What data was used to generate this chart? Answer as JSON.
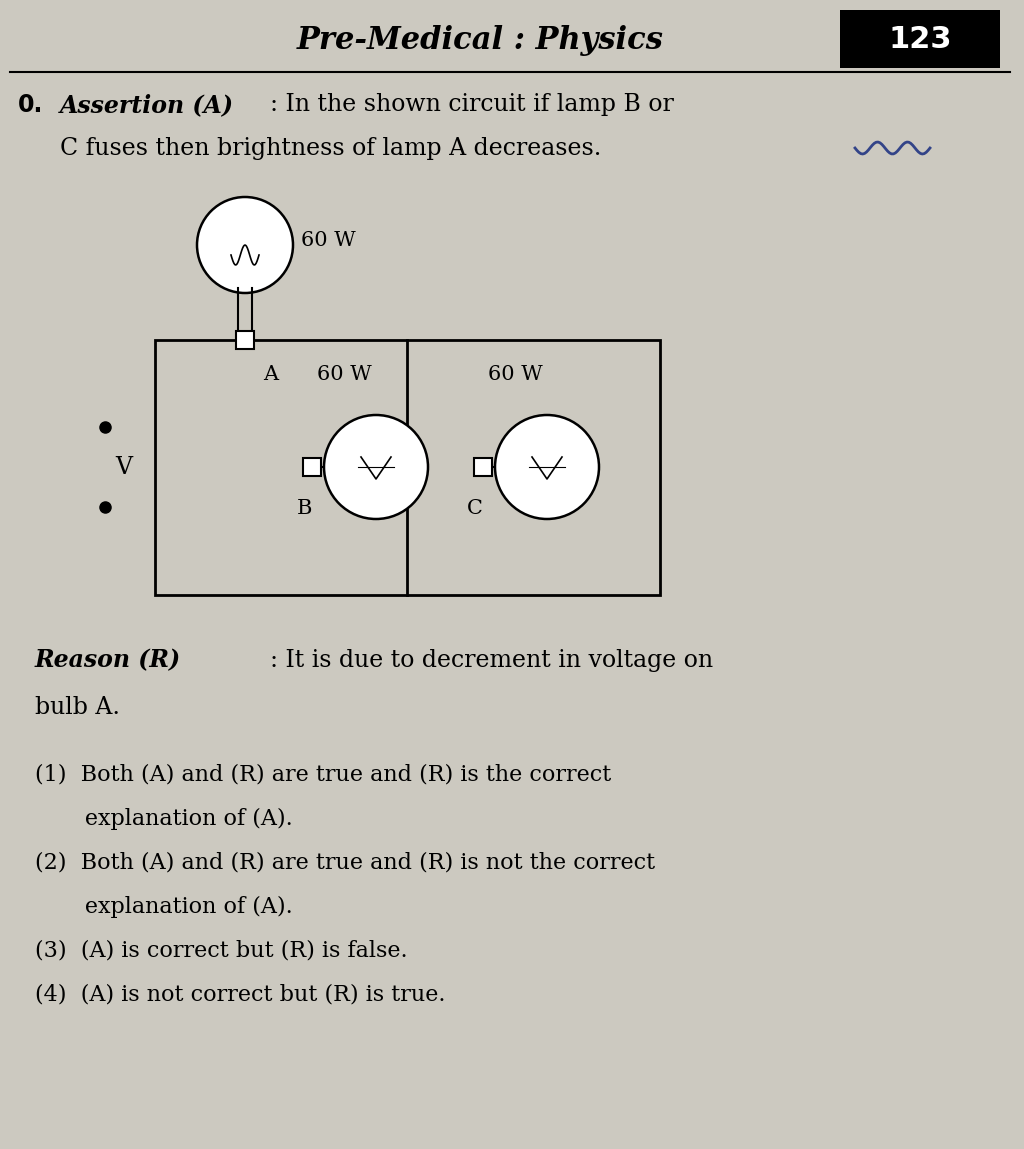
{
  "title": "Pre-Medical : Physics",
  "page_num": "123",
  "bg_color": "#ccc9c0",
  "assertion_label": "Assertion (A)",
  "reason_label": "Reason (R)",
  "circuit": {
    "lamp_A_watt": "60 W",
    "lamp_B_watt": "60 W",
    "lamp_C_watt": "60 W",
    "voltage_label": "V"
  },
  "options": [
    "(1)  Both (A) and (R) are true and (R) is the correct",
    "      explanation of (A).",
    "(2)  Both (A) and (R) are true and (R) is not the correct",
    "      explanation of (A).",
    "(3)  (A) is correct but (R) is false.",
    "(4)  (A) is not correct but (R) is true."
  ]
}
